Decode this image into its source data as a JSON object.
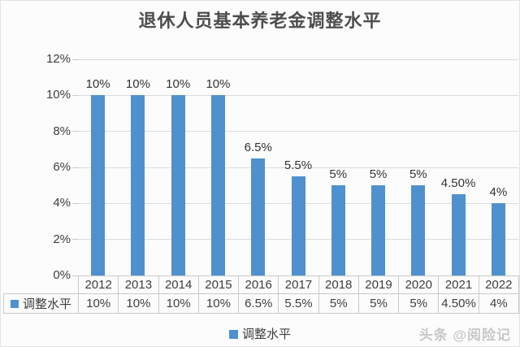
{
  "title": "退休人员基本养老金调整水平",
  "watermark": "头条 @阅险记",
  "legend": {
    "label": "调整水平"
  },
  "colors": {
    "bar": "#4e91ce",
    "grid": "#dcdcdc",
    "table_border": "#c9c9c9",
    "text": "#3d3d3d",
    "title_text": "#4d4d4d",
    "watermark_text": "#c8c8c8"
  },
  "chart_data": {
    "type": "bar",
    "title": "退休人员基本养老金调整水平",
    "categories": [
      "2012",
      "2013",
      "2014",
      "2015",
      "2016",
      "2017",
      "2018",
      "2019",
      "2020",
      "2021",
      "2022"
    ],
    "series": [
      {
        "name": "调整水平",
        "values": [
          10,
          10,
          10,
          10,
          6.5,
          5.5,
          5,
          5,
          5,
          4.5,
          4
        ]
      }
    ],
    "bar_labels": [
      "10%",
      "10%",
      "10%",
      "10%",
      "6.5%",
      "5.5%",
      "5%",
      "5%",
      "5%",
      "4.50%",
      "4%"
    ],
    "y_tick_labels": [
      "12%",
      "10%",
      "8%",
      "6%",
      "4%",
      "2%",
      "0%"
    ],
    "y_tick_values": [
      12,
      10,
      8,
      6,
      4,
      2,
      0
    ],
    "ylim": [
      0,
      12
    ],
    "grid": true,
    "legend_position": "bottom",
    "data_table": {
      "row_label": "调整水平",
      "header_row": [
        "2012",
        "2013",
        "2014",
        "2015",
        "2016",
        "2017",
        "2018",
        "2019",
        "2020",
        "2021",
        "2022"
      ],
      "row_values": [
        "10%",
        "10%",
        "10%",
        "10%",
        "6.5%",
        "5.5%",
        "5%",
        "5%",
        "5%",
        "4.50%",
        "4%"
      ]
    }
  }
}
